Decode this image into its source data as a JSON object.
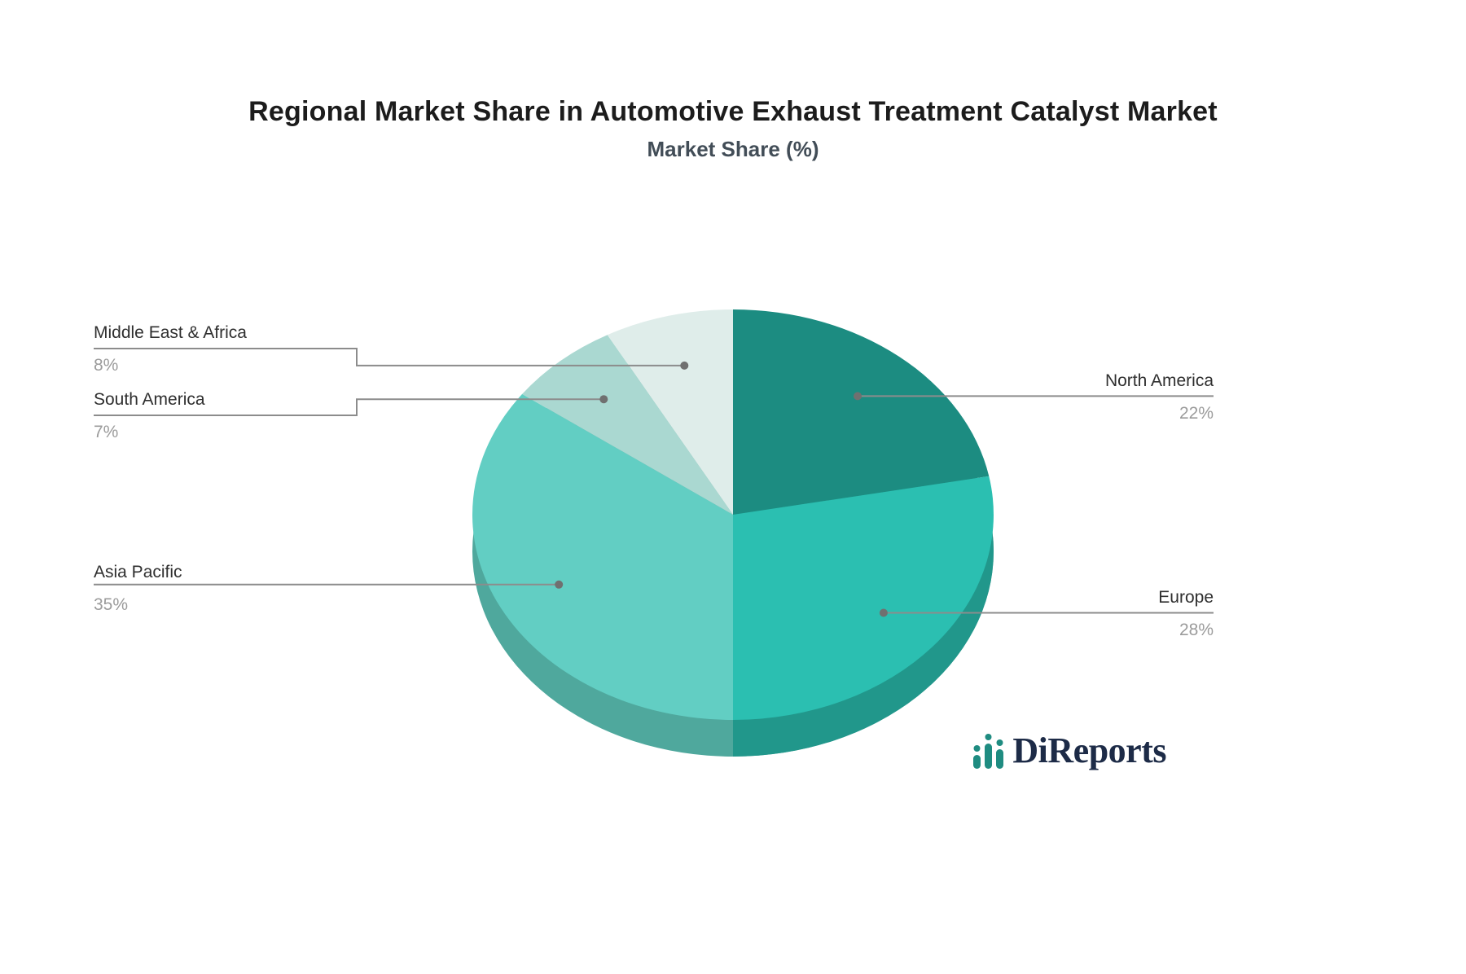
{
  "title": "Regional Market Share in Automotive Exhaust Treatment Catalyst Market",
  "subtitle": "Market Share (%)",
  "chart_data": {
    "type": "pie",
    "title": "Regional Market Share in Automotive Exhaust Treatment Catalyst Market",
    "subtitle": "Market Share (%)",
    "style": "3d-pie",
    "start_angle": "top",
    "direction": "clockwise",
    "legend_position": "callout-labels",
    "slices": [
      {
        "label": "North America",
        "value": 22,
        "display": "22%",
        "color": "#1c8c81",
        "side": "right"
      },
      {
        "label": "Europe",
        "value": 28,
        "display": "28%",
        "color": "#2bbfb1",
        "side": "right"
      },
      {
        "label": "Asia Pacific",
        "value": 35,
        "display": "35%",
        "color": "#62cec3",
        "side": "left"
      },
      {
        "label": "South America",
        "value": 7,
        "display": "7%",
        "color": "#aad8d1",
        "side": "left"
      },
      {
        "label": "Middle East & Africa",
        "value": 8,
        "display": "8%",
        "color": "#dfedea",
        "side": "left"
      }
    ],
    "depth_colors": {
      "left": "#4fa89d",
      "right": "#21978b"
    },
    "leader_line_color": "#8c8c8c",
    "leader_dot_color": "#707070",
    "label_text_color": "#2f2f2f",
    "pct_text_color": "#9b9b9b"
  },
  "logo": {
    "text": "DiReports",
    "icon": "bar-chart-icon",
    "text_color": "#1d2b47",
    "icon_color": "#1f8c81"
  }
}
